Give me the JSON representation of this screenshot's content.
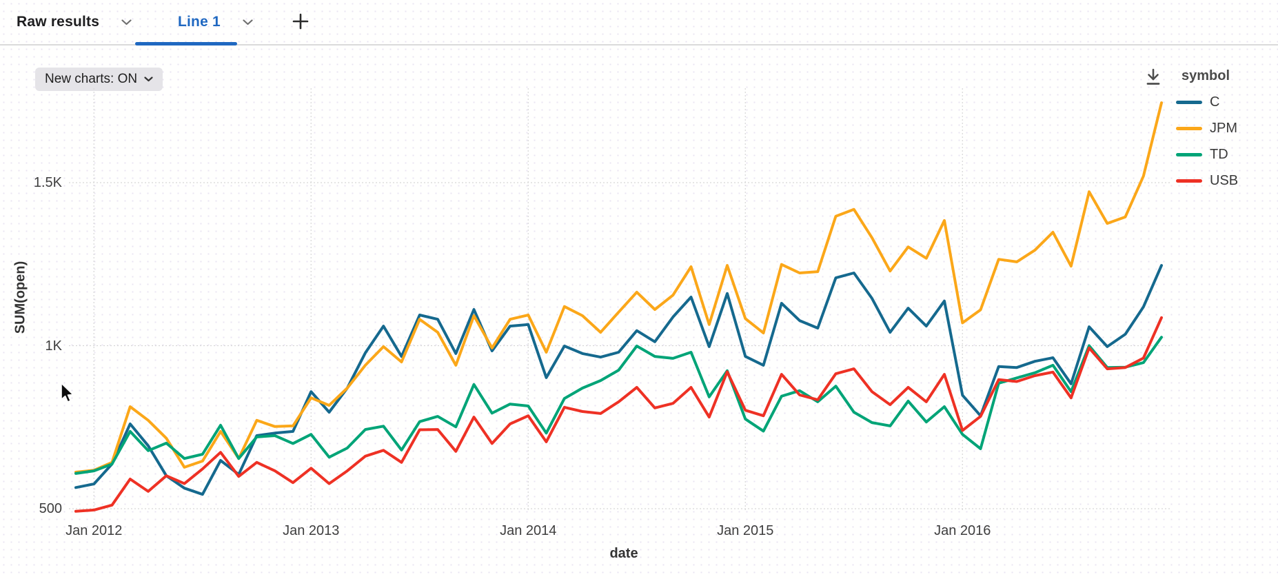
{
  "tab_bar": {
    "tabs": [
      {
        "label": "Raw results",
        "active": false
      },
      {
        "label": "Line 1",
        "active": true
      }
    ]
  },
  "toolbar": {
    "new_charts_label": "New charts: ON"
  },
  "icons": {
    "tab_dropdown": "chevron-down-icon",
    "add_tab": "plus-icon",
    "export": "download-icon"
  },
  "colors": {
    "active_tab": "#1f68c1",
    "tab_text": "#1d1d1f",
    "pill_background": "#e5e4e8",
    "gridline": "#d6d6d6"
  },
  "chart_data": {
    "type": "line",
    "title": "",
    "xlabel": "date",
    "ylabel": "SUM(open)",
    "legend_title": "symbol",
    "legend_position": "top-right",
    "grid": true,
    "ylim": [
      460,
      1800
    ],
    "y_ticks": [
      {
        "label": "500",
        "value": 500
      },
      {
        "label": "1K",
        "value": 1000
      },
      {
        "label": "1.5K",
        "value": 1500
      }
    ],
    "x_ticks": [
      {
        "label": "Jan 2012",
        "index": 1
      },
      {
        "label": "Jan 2013",
        "index": 13
      },
      {
        "label": "Jan 2014",
        "index": 25
      },
      {
        "label": "Jan 2015",
        "index": 37
      },
      {
        "label": "Jan 2016",
        "index": 49
      }
    ],
    "x": [
      "Dec 2011",
      "Jan 2012",
      "Feb 2012",
      "Mar 2012",
      "Apr 2012",
      "May 2012",
      "Jun 2012",
      "Jul 2012",
      "Aug 2012",
      "Sep 2012",
      "Oct 2012",
      "Nov 2012",
      "Dec 2012",
      "Jan 2013",
      "Feb 2013",
      "Mar 2013",
      "Apr 2013",
      "May 2013",
      "Jun 2013",
      "Jul 2013",
      "Aug 2013",
      "Sep 2013",
      "Oct 2013",
      "Nov 2013",
      "Dec 2013",
      "Jan 2014",
      "Feb 2014",
      "Mar 2014",
      "Apr 2014",
      "May 2014",
      "Jun 2014",
      "Jul 2014",
      "Aug 2014",
      "Sep 2014",
      "Oct 2014",
      "Nov 2014",
      "Dec 2014",
      "Jan 2015",
      "Feb 2015",
      "Mar 2015",
      "Apr 2015",
      "May 2015",
      "Jun 2015",
      "Jul 2015",
      "Aug 2015",
      "Sep 2015",
      "Oct 2015",
      "Nov 2015",
      "Dec 2015",
      "Jan 2016",
      "Feb 2016",
      "Mar 2016",
      "Apr 2016",
      "May 2016",
      "Jun 2016",
      "Jul 2016",
      "Aug 2016",
      "Sep 2016",
      "Oct 2016",
      "Nov 2016",
      "Dec 2016"
    ],
    "series": [
      {
        "name": "C",
        "color": "#15698e",
        "values": [
          565,
          576,
          637,
          760,
          693,
          601,
          563,
          544,
          648,
          605,
          724,
          732,
          737,
          859,
          796,
          870,
          978,
          1060,
          967,
          1094,
          1081,
          976,
          1111,
          984,
          1060,
          1065,
          902,
          999,
          976,
          965,
          980,
          1046,
          1012,
          1088,
          1149,
          997,
          1160,
          967,
          940,
          1130,
          1077,
          1054,
          1208,
          1223,
          1145,
          1041,
          1115,
          1060,
          1137,
          848,
          785,
          936,
          933,
          952,
          963,
          883,
          1058,
          997,
          1035,
          1119,
          1246
        ]
      },
      {
        "name": "JPM",
        "color": "#fba719",
        "values": [
          612,
          618,
          642,
          813,
          771,
          716,
          627,
          646,
          737,
          654,
          771,
          752,
          754,
          840,
          817,
          870,
          940,
          997,
          950,
          1081,
          1041,
          940,
          1092,
          993,
          1081,
          1094,
          980,
          1120,
          1092,
          1041,
          1103,
          1164,
          1111,
          1155,
          1242,
          1065,
          1246,
          1083,
          1039,
          1249,
          1223,
          1227,
          1397,
          1418,
          1331,
          1229,
          1303,
          1268,
          1384,
          1070,
          1110,
          1265,
          1257,
          1293,
          1348,
          1244,
          1472,
          1375,
          1395,
          1520,
          1745
        ]
      },
      {
        "name": "TD",
        "color": "#00a477",
        "values": [
          608,
          616,
          637,
          737,
          678,
          701,
          654,
          667,
          756,
          654,
          720,
          724,
          700,
          728,
          658,
          686,
          743,
          753,
          680,
          767,
          783,
          751,
          881,
          793,
          821,
          815,
          732,
          838,
          870,
          893,
          925,
          999,
          967,
          961,
          980,
          843,
          923,
          775,
          738,
          845,
          862,
          828,
          876,
          796,
          764,
          754,
          830,
          766,
          813,
          728,
          684,
          885,
          901,
          917,
          940,
          859,
          1000,
          933,
          934,
          948,
          1026
        ]
      },
      {
        "name": "USB",
        "color": "#ee3124",
        "values": [
          492,
          496,
          511,
          591,
          553,
          601,
          577,
          622,
          673,
          599,
          642,
          616,
          580,
          624,
          577,
          616,
          661,
          679,
          642,
          742,
          743,
          676,
          781,
          700,
          760,
          785,
          705,
          811,
          798,
          792,
          828,
          872,
          809,
          823,
          872,
          781,
          920,
          802,
          785,
          912,
          849,
          834,
          914,
          929,
          859,
          819,
          872,
          828,
          912,
          740,
          783,
          896,
          890,
          908,
          919,
          840,
          993,
          929,
          933,
          962,
          1086
        ]
      }
    ]
  }
}
